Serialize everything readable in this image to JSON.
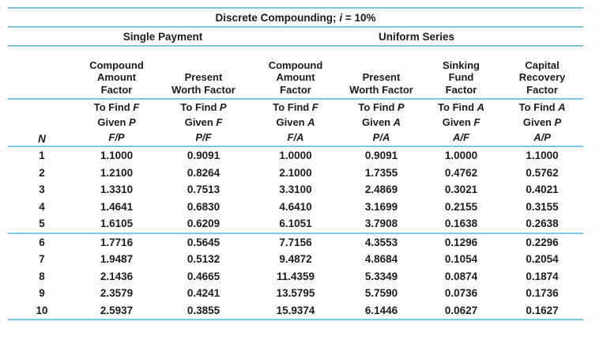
{
  "table": {
    "title": {
      "prefix": "Discrete Compounding; ",
      "var": "i",
      "suffix": " = 10%"
    },
    "groups": [
      "Single Payment",
      "Uniform Series"
    ],
    "n_header": "N",
    "labels": {
      "to_find": "To Find",
      "given": "Given"
    },
    "columns": [
      {
        "factor_lines": [
          "Compound",
          "Amount",
          "Factor"
        ],
        "find_var": "F",
        "given_var": "P",
        "ratio": "F/P"
      },
      {
        "factor_lines": [
          "Present",
          "Worth Factor"
        ],
        "find_var": "P",
        "given_var": "F",
        "ratio": "P/F"
      },
      {
        "factor_lines": [
          "Compound",
          "Amount",
          "Factor"
        ],
        "find_var": "F",
        "given_var": "A",
        "ratio": "F/A"
      },
      {
        "factor_lines": [
          "Present",
          "Worth Factor"
        ],
        "find_var": "P",
        "given_var": "A",
        "ratio": "P/A"
      },
      {
        "factor_lines": [
          "Sinking",
          "Fund",
          "Factor"
        ],
        "find_var": "A",
        "given_var": "F",
        "ratio": "A/F"
      },
      {
        "factor_lines": [
          "Capital",
          "Recovery",
          "Factor"
        ],
        "find_var": "A",
        "given_var": "P",
        "ratio": "A/P"
      }
    ],
    "rows": [
      {
        "n": "1",
        "values": [
          "1.1000",
          "0.9091",
          "1.0000",
          "0.9091",
          "1.0000",
          "1.1000"
        ]
      },
      {
        "n": "2",
        "values": [
          "1.2100",
          "0.8264",
          "2.1000",
          "1.7355",
          "0.4762",
          "0.5762"
        ]
      },
      {
        "n": "3",
        "values": [
          "1.3310",
          "0.7513",
          "3.3100",
          "2.4869",
          "0.3021",
          "0.4021"
        ]
      },
      {
        "n": "4",
        "values": [
          "1.4641",
          "0.6830",
          "4.6410",
          "3.1699",
          "0.2155",
          "0.3155"
        ]
      },
      {
        "n": "5",
        "values": [
          "1.6105",
          "0.6209",
          "6.1051",
          "3.7908",
          "0.1638",
          "0.2638"
        ]
      },
      {
        "n": "6",
        "values": [
          "1.7716",
          "0.5645",
          "7.7156",
          "4.3553",
          "0.1296",
          "0.2296"
        ]
      },
      {
        "n": "7",
        "values": [
          "1.9487",
          "0.5132",
          "9.4872",
          "4.8684",
          "0.1054",
          "0.2054"
        ]
      },
      {
        "n": "8",
        "values": [
          "2.1436",
          "0.4665",
          "11.4359",
          "5.3349",
          "0.0874",
          "0.1874"
        ]
      },
      {
        "n": "9",
        "values": [
          "2.3579",
          "0.4241",
          "13.5795",
          "5.7590",
          "0.0736",
          "0.1736"
        ]
      },
      {
        "n": "10",
        "values": [
          "2.5937",
          "0.3855",
          "15.9374",
          "6.1446",
          "0.0627",
          "0.1627"
        ]
      }
    ],
    "colors": {
      "rule_blue": "#7cc6e9",
      "text": "#1c1c1c"
    }
  }
}
